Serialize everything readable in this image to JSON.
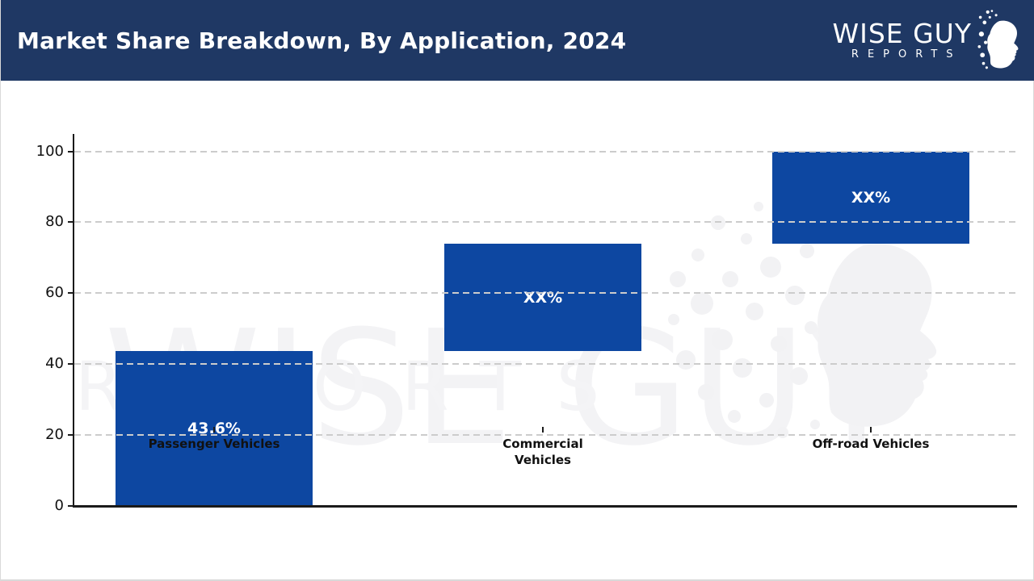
{
  "header": {
    "title": "Market Share Breakdown, By Application, 2024",
    "bg_color": "#1f3864",
    "logo": {
      "line1": "WISE GUY",
      "line2": "REPORTS"
    }
  },
  "watermark": {
    "line1": "WISE GUY",
    "line2": "REPORTS",
    "color": "#f3f3f5"
  },
  "chart_data": {
    "type": "bar",
    "subtype": "waterfall-breakdown",
    "title": "Market Share Breakdown, By Application, 2024",
    "categories": [
      "Passenger Vehicles",
      "Commercial Vehicles",
      "Off-road Vehicles"
    ],
    "category_label_lines": [
      [
        "Passenger Vehicles"
      ],
      [
        "Commercial",
        "Vehicles"
      ],
      [
        "Off-road Vehicles"
      ]
    ],
    "segments": [
      {
        "category": "Passenger Vehicles",
        "start": 0,
        "end": 43.6,
        "value": 43.6,
        "label": "43.6%"
      },
      {
        "category": "Commercial Vehicles",
        "start": 43.6,
        "end": 74,
        "value": 30.4,
        "label": "XX%"
      },
      {
        "category": "Off-road Vehicles",
        "start": 74,
        "end": 100,
        "value": 26,
        "label": "XX%"
      }
    ],
    "ylim": [
      0,
      100
    ],
    "yticks": [
      0,
      20,
      40,
      60,
      80,
      100
    ],
    "xlabel": "",
    "ylabel": "",
    "grid": {
      "horizontal": true,
      "style": "dashed",
      "color": "#cccccc",
      "above_bars": true
    },
    "legend": null,
    "bar_color": "#0d47a1",
    "bar_label_color": "#ffffff",
    "axis_color": "#1a1a1a"
  }
}
